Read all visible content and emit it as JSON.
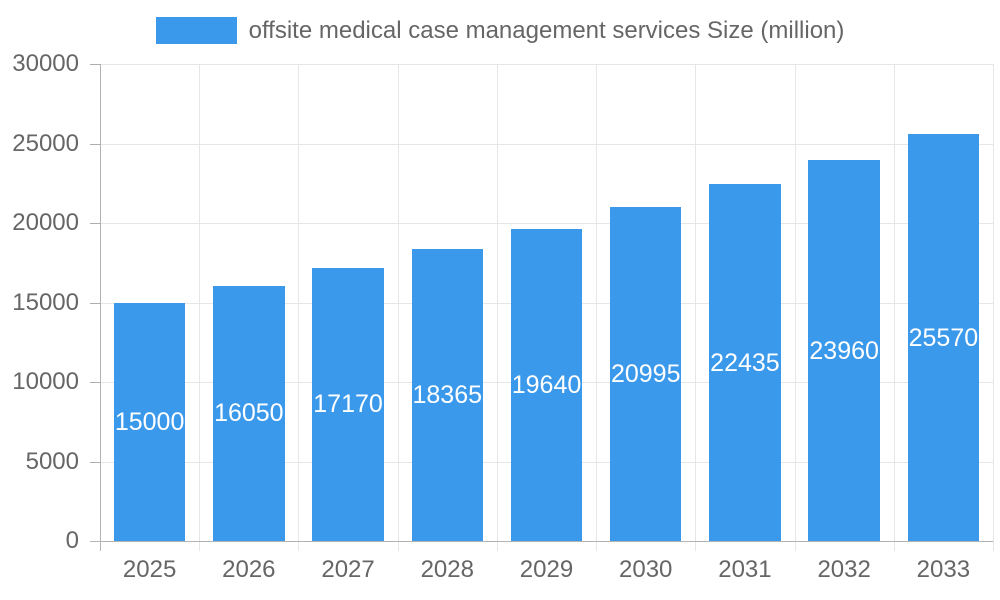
{
  "chart_data": {
    "type": "bar",
    "title": "",
    "legend_label": "offsite medical case management services Size (million)",
    "legend_position": "top",
    "categories": [
      "2025",
      "2026",
      "2027",
      "2028",
      "2029",
      "2030",
      "2031",
      "2032",
      "2033"
    ],
    "values": [
      15000,
      16050,
      17170,
      18365,
      19640,
      20995,
      22435,
      23960,
      25570
    ],
    "bar_labels": [
      "15000",
      "16050",
      "17170",
      "18365",
      "19640",
      "20995",
      "22435",
      "23960",
      "25570"
    ],
    "xlabel": "",
    "ylabel": "",
    "ylim": [
      0,
      30000
    ],
    "ytick_step": 5000,
    "yticks": [
      0,
      5000,
      10000,
      15000,
      20000,
      25000,
      30000
    ],
    "ytick_labels": [
      "0",
      "5000",
      "10000",
      "15000",
      "20000",
      "25000",
      "30000"
    ],
    "grid": true,
    "colors": {
      "bar": "#3B99EC",
      "bar_label_text": "#FFFFFF",
      "axis_text": "#666666",
      "grid_line": "#E6E6E6",
      "axis_line": "#B3B3B3",
      "background": "#FFFFFF"
    }
  }
}
